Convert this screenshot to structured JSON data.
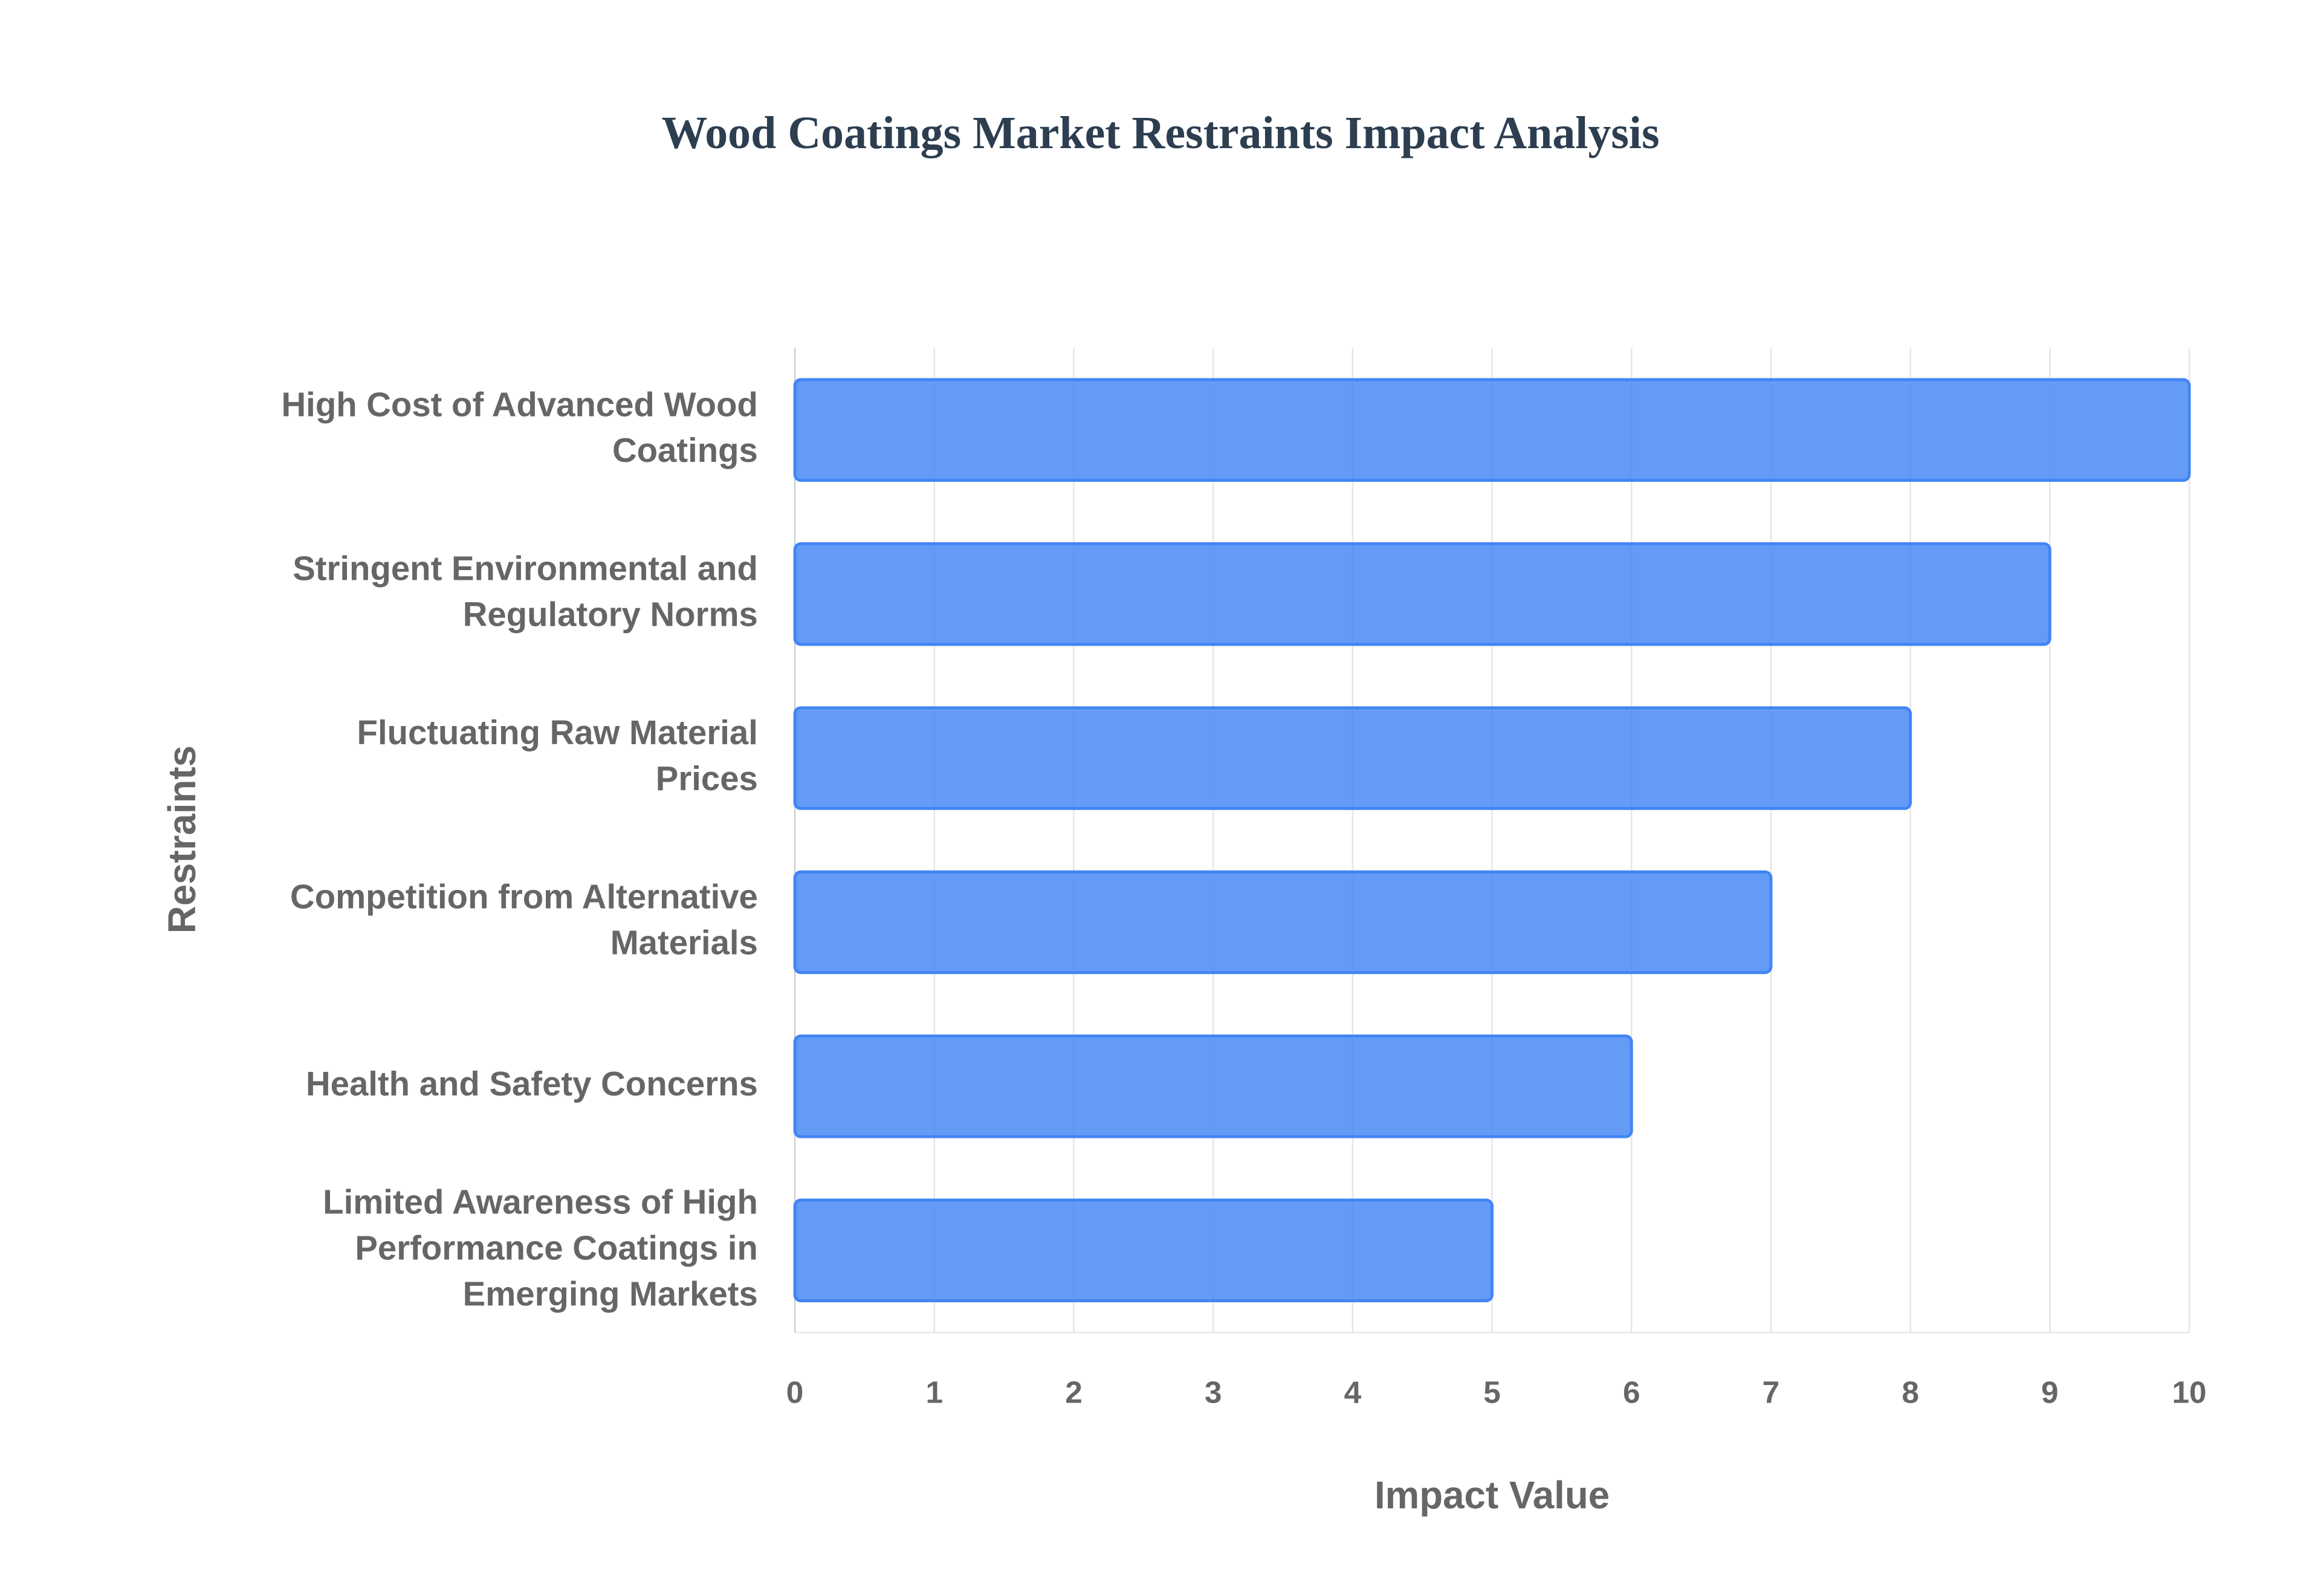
{
  "chart_data": {
    "type": "bar",
    "orientation": "horizontal",
    "title": "Wood Coatings Market Restraints Impact Analysis",
    "x_label": "Impact Value",
    "y_label": "Restraints",
    "categories": [
      "High Cost of Advanced Wood Coatings",
      "Stringent Environmental and Regulatory Norms",
      "Fluctuating Raw Material Prices",
      "Competition from Alternative Materials",
      "Health and Safety Concerns",
      "Limited Awareness of High Performance Coatings in Emerging Markets"
    ],
    "values": [
      10,
      9,
      8,
      7,
      6,
      5
    ],
    "color": "#4285f4",
    "xlim": [
      0,
      10
    ],
    "xticks": [
      0,
      1,
      2,
      3,
      4,
      5,
      6,
      7,
      8,
      9,
      10
    ],
    "grid": true
  }
}
